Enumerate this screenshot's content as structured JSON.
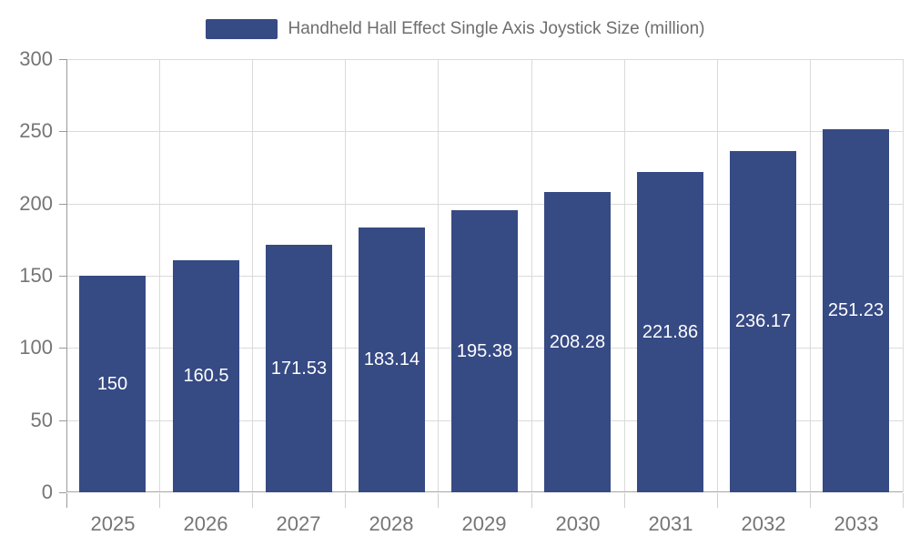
{
  "chart_data": {
    "type": "bar",
    "title": "Handheld Hall Effect Single Axis Joystick Size (million)",
    "categories": [
      "2025",
      "2026",
      "2027",
      "2028",
      "2029",
      "2030",
      "2031",
      "2032",
      "2033"
    ],
    "values": [
      150,
      160.5,
      171.53,
      183.14,
      195.38,
      208.28,
      221.86,
      236.17,
      251.23
    ],
    "value_labels": [
      "150",
      "160.5",
      "171.53",
      "183.14",
      "195.38",
      "208.28",
      "221.86",
      "236.17",
      "251.23"
    ],
    "xlabel": "",
    "ylabel": "",
    "ylim": [
      0,
      300
    ],
    "yticks": [
      0,
      50,
      100,
      150,
      200,
      250,
      300
    ],
    "grid": true,
    "legend_position": "top-center",
    "colors": {
      "bar": "#364a84",
      "bar_value_text": "#ffffff",
      "axis_line": "#9a9a9a",
      "gridline": "#dadada",
      "tick_label": "#757575",
      "legend_text": "#6e6e6e",
      "background": "#ffffff"
    }
  }
}
